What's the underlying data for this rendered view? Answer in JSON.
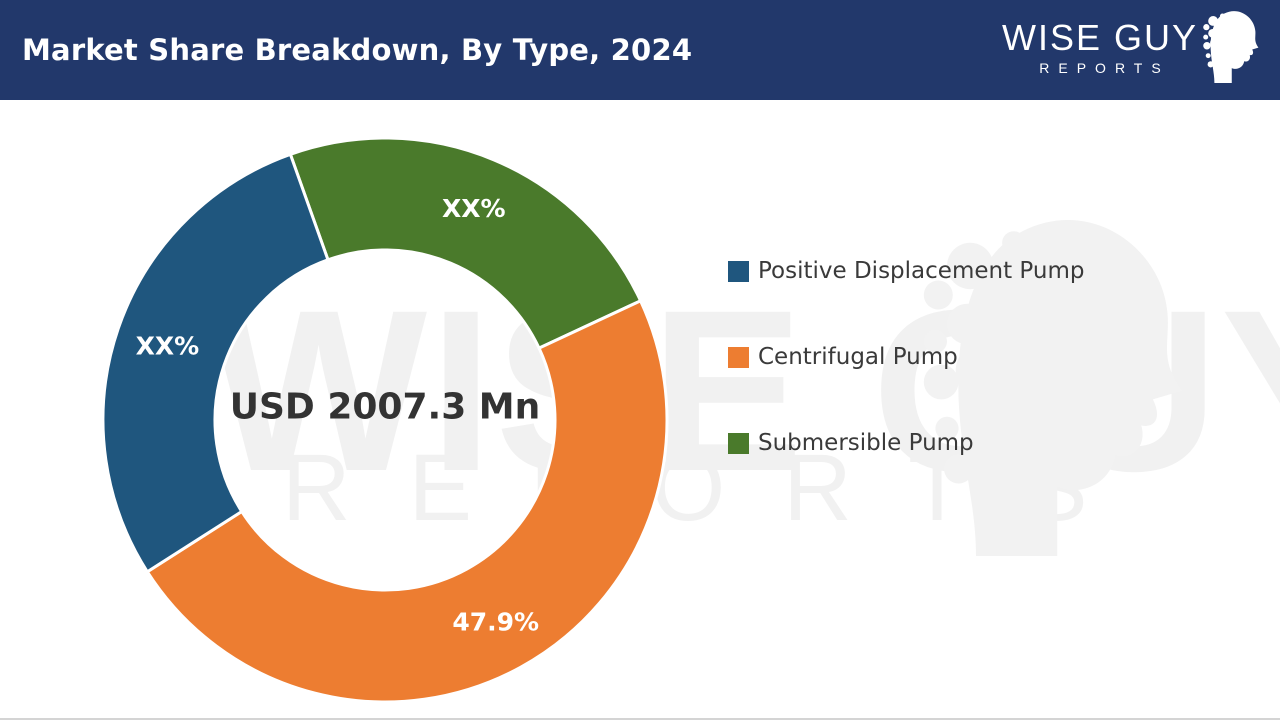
{
  "header": {
    "title": "Market Share Breakdown, By Type, 2024",
    "logo": {
      "line1": "WISE GUY",
      "line2": "REPORTS"
    }
  },
  "watermark": {
    "line1": "WISE GUY",
    "line2": "REPORTS"
  },
  "chart_data": {
    "type": "pie",
    "variant": "donut",
    "title": "Market Share Breakdown, By Type, 2024",
    "center_label": "USD 2007.3 Mn",
    "start_angle_deg": -19.6,
    "segments": [
      {
        "name": "Submersible Pump",
        "value": 23.5,
        "display_label": "XX%",
        "color": "#4a7a2b"
      },
      {
        "name": "Centrifugal Pump",
        "value": 47.9,
        "display_label": "47.9%",
        "color": "#ed7d31"
      },
      {
        "name": "Positive Displacement Pump",
        "value": 28.6,
        "display_label": "XX%",
        "color": "#1f567e"
      }
    ],
    "legend": [
      {
        "label": "Positive Displacement Pump",
        "color": "#1f567e"
      },
      {
        "label": "Centrifugal Pump",
        "color": "#ed7d31"
      },
      {
        "label": "Submersible Pump",
        "color": "#4a7a2b"
      }
    ],
    "legend_position": "right"
  },
  "colors": {
    "header_bg": "#22386b",
    "watermark": "#f1f1f1",
    "legend_text": "#3a3a3a",
    "center_text": "#333333"
  }
}
